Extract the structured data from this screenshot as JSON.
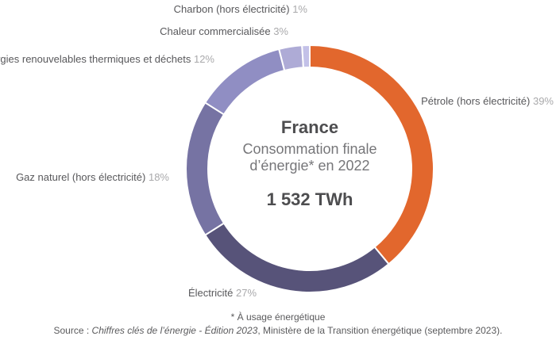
{
  "chart_data": {
    "type": "pie",
    "variant": "donut",
    "title": "France",
    "subtitle": "Consommation finale d’énergie* en 2022",
    "center_total": "1 532 TWh",
    "unit": "%",
    "clockwise_from_top": true,
    "segments": [
      {
        "label": "Pétrole (hors électricité)",
        "value": 39,
        "pct_label": "39%",
        "color": "#e2672d"
      },
      {
        "label": "Électricité",
        "value": 27,
        "pct_label": "27%",
        "color": "#575379"
      },
      {
        "label": "Gaz naturel (hors électricité)",
        "value": 18,
        "pct_label": "18%",
        "color": "#7673a3"
      },
      {
        "label": "Énergies renouvelables thermiques et déchets",
        "value": 12,
        "pct_label": "12%",
        "color": "#908ec3"
      },
      {
        "label": "Chaleur commercialisée",
        "value": 3,
        "pct_label": "3%",
        "color": "#aeabd6"
      },
      {
        "label": "Charbon (hors électricité)",
        "value": 1,
        "pct_label": "1%",
        "color": "#c3c1e8"
      }
    ]
  },
  "footer": {
    "note": "* À usage énergétique",
    "source_prefix": "Source : ",
    "source_italic": "Chiffres clés de l’énergie - Édition 2023",
    "source_suffix": ", Ministère de la Transition énergétique (septembre 2023)."
  }
}
